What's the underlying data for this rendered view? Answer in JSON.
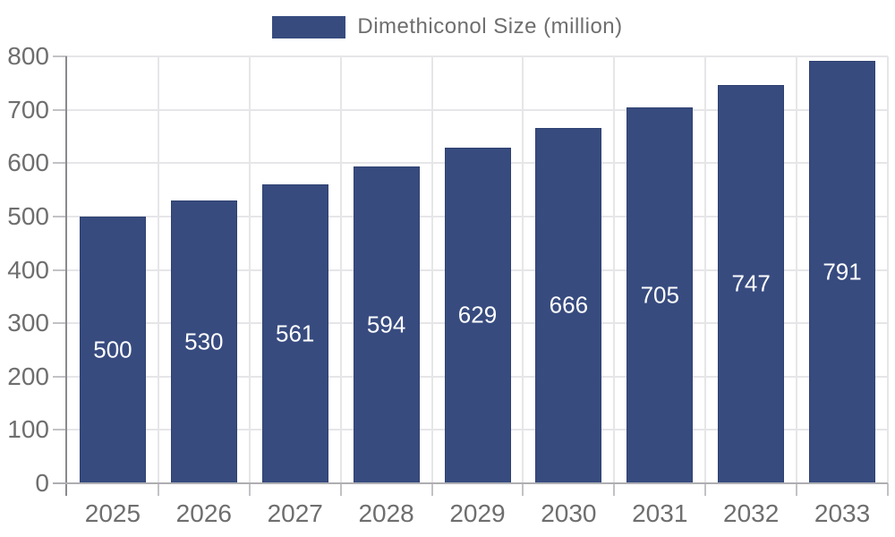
{
  "legend": {
    "label": "Dimethiconol Size (million)",
    "swatch_color": "#374b7f"
  },
  "chart_data": {
    "type": "bar",
    "title": "",
    "categories": [
      "2025",
      "2026",
      "2027",
      "2028",
      "2029",
      "2030",
      "2031",
      "2032",
      "2033"
    ],
    "values": [
      500,
      530,
      561,
      594,
      629,
      666,
      705,
      747,
      791
    ],
    "series": [
      {
        "name": "Dimethiconol Size (million)",
        "values": [
          500,
          530,
          561,
          594,
          629,
          666,
          705,
          747,
          791
        ]
      }
    ],
    "xlabel": "",
    "ylabel": "",
    "ylim": [
      0,
      800
    ],
    "ytick_step": 100,
    "yticks": [
      0,
      100,
      200,
      300,
      400,
      500,
      600,
      700,
      800
    ],
    "grid": true,
    "legend_position": "top",
    "bar_color": "#374b7f",
    "value_label_color": "#ffffff",
    "axis_text_color": "#6e6e6e",
    "gridline_color": "#e6e6e9"
  }
}
